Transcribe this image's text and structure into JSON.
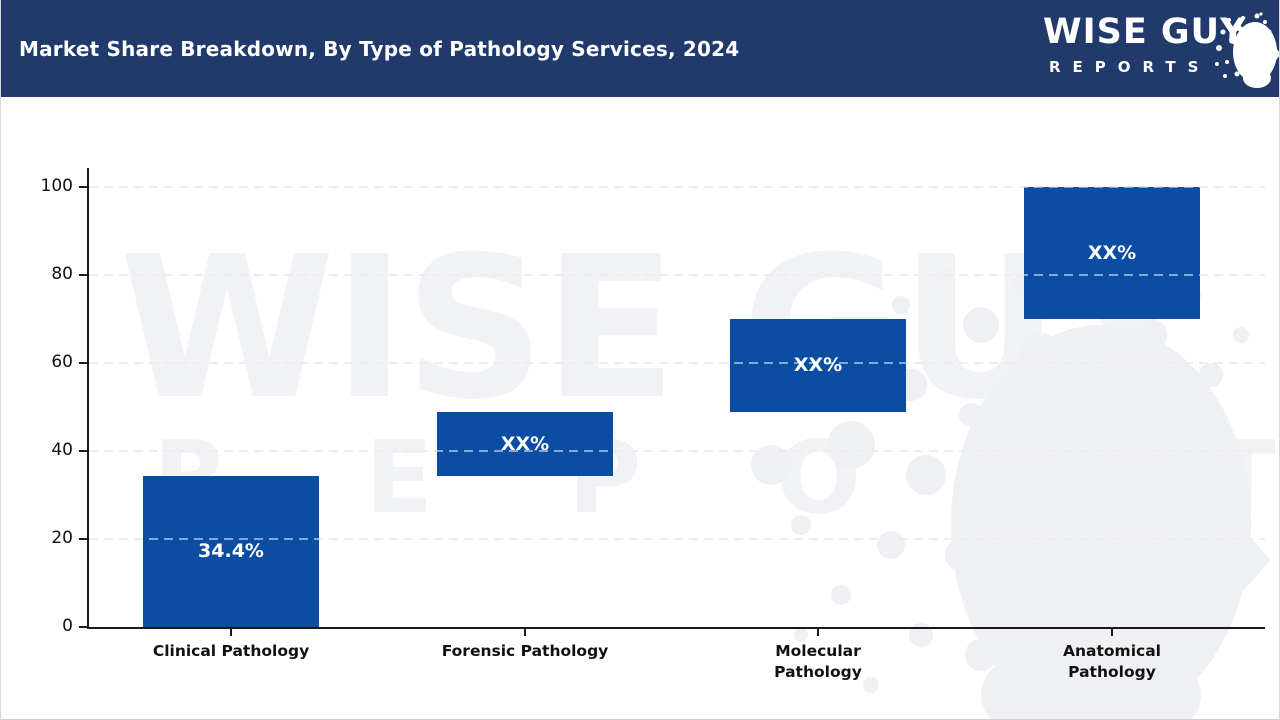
{
  "header": {
    "title": "Market Share Breakdown, By Type of Pathology Services, 2024",
    "bg_color": "#213A6B",
    "logo_line1": "WISE GUY",
    "logo_line2": "REPORTS"
  },
  "watermark": {
    "line1": "WISE GUY",
    "line2": "R E P O R T S"
  },
  "chart_data": {
    "type": "bar",
    "variant": "waterfall",
    "title": "Market Share Breakdown, By Type of Pathology Services, 2024",
    "categories": [
      "Clinical Pathology",
      "Forensic Pathology",
      "Molecular\nPathology",
      "Anatomical\nPathology"
    ],
    "segments": [
      {
        "category": "Clinical Pathology",
        "start": 0,
        "end": 34.4,
        "label": "34.4%"
      },
      {
        "category": "Forensic Pathology",
        "start": 34.4,
        "end": 48.9,
        "label": "XX%"
      },
      {
        "category": "Molecular Pathology",
        "start": 48.9,
        "end": 70.0,
        "label": "XX%"
      },
      {
        "category": "Anatomical Pathology",
        "start": 70.0,
        "end": 100.0,
        "label": "XX%"
      }
    ],
    "yticks": [
      "0",
      "20",
      "40",
      "60",
      "80",
      "100"
    ],
    "ylim": [
      0,
      100
    ],
    "grid": {
      "horizontal": true,
      "style": "dashed"
    },
    "legend": false,
    "bar_color": "#0B4DA2",
    "bar_label_color": "#FFFFFF"
  }
}
